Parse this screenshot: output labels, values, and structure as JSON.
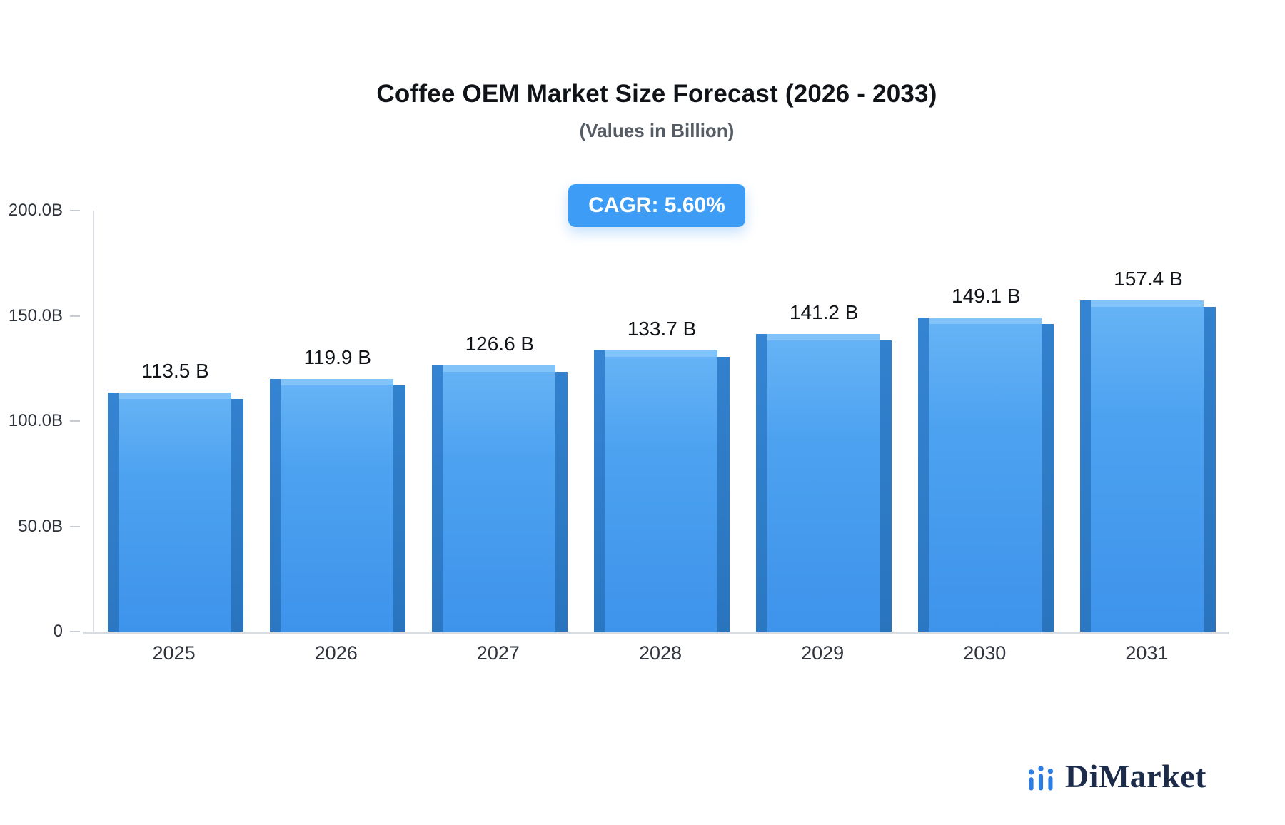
{
  "chart_data": {
    "type": "bar",
    "title": "Coffee OEM Market Size Forecast (2026 - 2033)",
    "subtitle": "(Values in Billion)",
    "annotation": "CAGR: 5.60%",
    "categories": [
      "2025",
      "2026",
      "2027",
      "2028",
      "2029",
      "2030",
      "2031"
    ],
    "values": [
      113.5,
      119.9,
      126.6,
      133.7,
      141.2,
      149.1,
      157.4
    ],
    "value_labels": [
      "113.5 B",
      "119.9 B",
      "126.6 B",
      "133.7 B",
      "141.2 B",
      "149.1 B",
      "157.4 B"
    ],
    "xlabel": "",
    "ylabel": "",
    "ylim": [
      0,
      200
    ],
    "yticks": [
      {
        "value": 0,
        "label": "0"
      },
      {
        "value": 50,
        "label": "50.0B"
      },
      {
        "value": 100,
        "label": "100.0B"
      },
      {
        "value": 150,
        "label": "150.0B"
      },
      {
        "value": 200,
        "label": "200.0B"
      }
    ],
    "grid": false,
    "legend": false,
    "colors": {
      "bar_face_top": "#67B4F6",
      "bar_face_bottom": "#3E93EB",
      "bar_side": "#2E7CC7",
      "badge": "#3D9CF6",
      "axis": "#D9DCE1"
    }
  },
  "branding": {
    "logo_text": "DiMarket",
    "logo_icon": "bar-chart-icon",
    "logo_color": "#1C2B4A",
    "logo_icon_color": "#2D7DE1"
  }
}
